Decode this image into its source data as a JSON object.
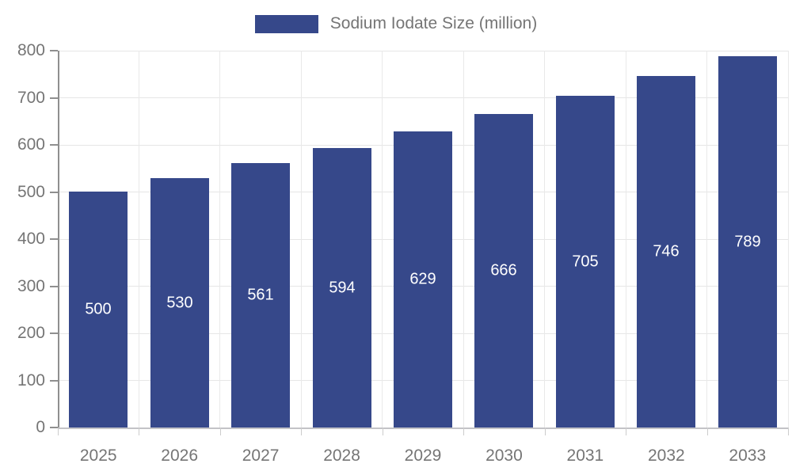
{
  "legend": {
    "label": "Sodium Iodate Size (million)"
  },
  "chart_data": {
    "type": "bar",
    "title": "",
    "series_name": "Sodium Iodate Size (million)",
    "categories": [
      "2025",
      "2026",
      "2027",
      "2028",
      "2029",
      "2030",
      "2031",
      "2032",
      "2033"
    ],
    "values": [
      500,
      530,
      561,
      594,
      629,
      666,
      705,
      746,
      789
    ],
    "value_labels": [
      "500",
      "530",
      "561",
      "594",
      "629",
      "666",
      "705",
      "746",
      "789"
    ],
    "xlabel": "",
    "ylabel": "",
    "ylim": [
      0,
      800
    ],
    "yticks": [
      0,
      100,
      200,
      300,
      400,
      500,
      600,
      700,
      800
    ],
    "grid": true,
    "legend_position": "top-center",
    "colors": {
      "bar": "#36488a",
      "value_label": "#ffffff",
      "axis_text": "#757575",
      "gridline": "#e6e6e6",
      "y_spine": "#8f8f8f",
      "x_axis_line": "#c3c3c7"
    }
  }
}
